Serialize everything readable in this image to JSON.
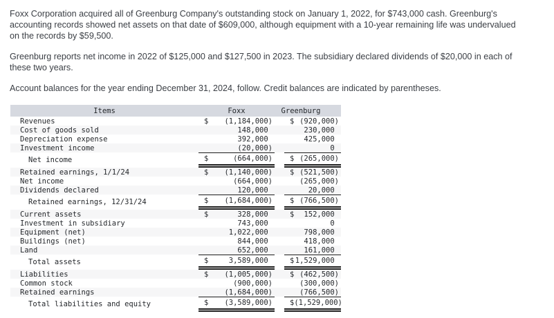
{
  "paragraphs": [
    "Foxx Corporation acquired all of Greenburg Company's outstanding stock on January 1, 2022, for $743,000 cash. Greenburg's\naccounting records showed net assets on that date of $609,000, although equipment with a 10-year remaining life was undervalued\non the records by $59,500.",
    "Greenburg reports net income in 2022 of $125,000 and $127,500 in 2023. The subsidiary declared dividends of $20,000 in each of\nthese two years.",
    "Account balances for the year ending December 31, 2024, follow. Credit balances are indicated by parentheses."
  ],
  "table": {
    "headers": [
      "Items",
      "Foxx",
      "Greenburg"
    ],
    "rows": [
      {
        "label": "Revenues",
        "shade": false,
        "total": false,
        "foxx": [
          "$",
          "(1,184,000)"
        ],
        "greenburg": [
          "$",
          "(920,000)"
        ]
      },
      {
        "label": "Cost of goods sold",
        "shade": true,
        "total": false,
        "foxx": [
          "",
          "148,000 "
        ],
        "greenburg": [
          "",
          "230,000 "
        ]
      },
      {
        "label": "Depreciation expense",
        "shade": false,
        "total": false,
        "foxx": [
          "",
          "392,000 "
        ],
        "greenburg": [
          "",
          "425,000 "
        ]
      },
      {
        "label": "Investment income",
        "shade": true,
        "total": false,
        "foxx": [
          "",
          "(20,000)"
        ],
        "greenburg": [
          "",
          "0 "
        ]
      },
      {
        "label": "Net income",
        "shade": false,
        "total": true,
        "foxx": [
          "$",
          "(664,000)"
        ],
        "greenburg": [
          "$",
          "(265,000)"
        ]
      },
      {
        "label": "Retained earnings, 1/1/24",
        "shade": true,
        "total": false,
        "foxx": [
          "$",
          "(1,140,000)"
        ],
        "greenburg": [
          "$",
          "(521,500)"
        ]
      },
      {
        "label": "Net income",
        "shade": false,
        "total": false,
        "foxx": [
          "",
          "(664,000)"
        ],
        "greenburg": [
          "",
          "(265,000)"
        ]
      },
      {
        "label": "Dividends declared",
        "shade": true,
        "total": false,
        "foxx": [
          "",
          "120,000 "
        ],
        "greenburg": [
          "",
          "20,000 "
        ]
      },
      {
        "label": "Retained earnings, 12/31/24",
        "shade": false,
        "total": true,
        "foxx": [
          "$",
          "(1,684,000)"
        ],
        "greenburg": [
          "$",
          "(766,500)"
        ]
      },
      {
        "label": "Current assets",
        "shade": true,
        "total": false,
        "foxx": [
          "$",
          "328,000 "
        ],
        "greenburg": [
          "$",
          "152,000 "
        ]
      },
      {
        "label": "Investment in subsidiary",
        "shade": false,
        "total": false,
        "foxx": [
          "",
          "743,000 "
        ],
        "greenburg": [
          "",
          "0 "
        ]
      },
      {
        "label": "Equipment (net)",
        "shade": true,
        "total": false,
        "foxx": [
          "",
          "1,022,000 "
        ],
        "greenburg": [
          "",
          "798,000 "
        ]
      },
      {
        "label": "Buildings (net)",
        "shade": false,
        "total": false,
        "foxx": [
          "",
          "844,000 "
        ],
        "greenburg": [
          "",
          "418,000 "
        ]
      },
      {
        "label": "Land",
        "shade": true,
        "total": false,
        "foxx": [
          "",
          "652,000 "
        ],
        "greenburg": [
          "",
          "161,000 "
        ]
      },
      {
        "label": "Total assets",
        "shade": false,
        "total": true,
        "foxx": [
          "$",
          "3,589,000 "
        ],
        "greenburg": [
          "$",
          "1,529,000 "
        ]
      },
      {
        "label": "Liabilities",
        "shade": true,
        "total": false,
        "foxx": [
          "$",
          "(1,005,000)"
        ],
        "greenburg": [
          "$",
          "(462,500)"
        ]
      },
      {
        "label": "Common stock",
        "shade": false,
        "total": false,
        "foxx": [
          "",
          "(900,000)"
        ],
        "greenburg": [
          "",
          "(300,000)"
        ]
      },
      {
        "label": "Retained earnings",
        "shade": true,
        "total": false,
        "foxx": [
          "",
          "(1,684,000)"
        ],
        "greenburg": [
          "",
          "(766,500)"
        ]
      },
      {
        "label": "Total liabilities and equity",
        "shade": false,
        "total": true,
        "foxx": [
          "$",
          "(3,589,000)"
        ],
        "greenburg": [
          "$",
          "(1,529,000)"
        ]
      }
    ]
  },
  "colors": {
    "header_bg": "#d6d9e0",
    "row_shade": "#f6f6f7",
    "table_text": "#24272b",
    "paragraph_text": "#3a3e44",
    "rule": "#1b1b1b"
  }
}
